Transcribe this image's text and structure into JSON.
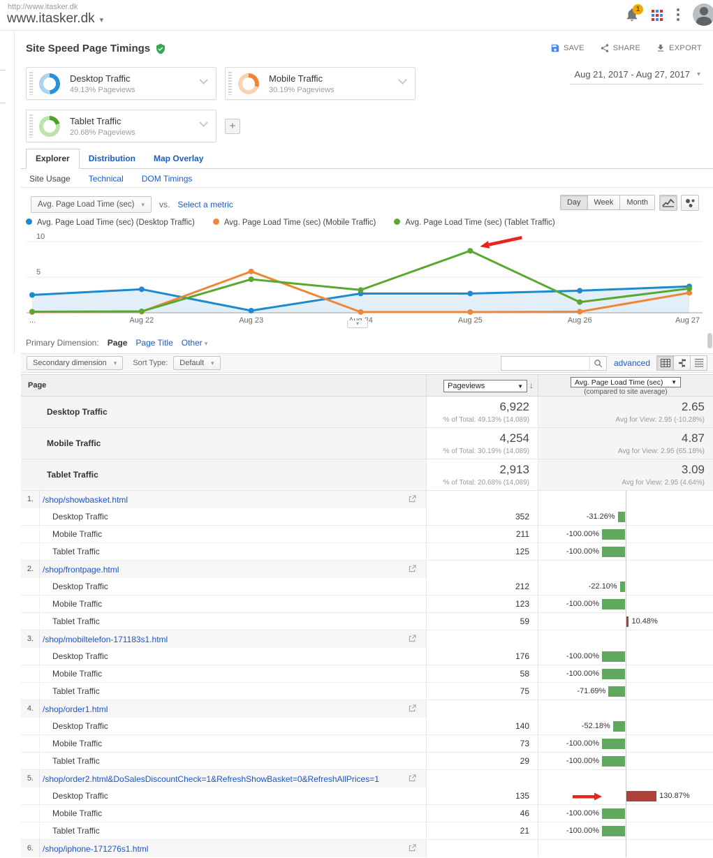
{
  "glyphs": {
    "caret_down": "▾",
    "select_caret": "▼",
    "sort_desc": "↓",
    "plus": "+",
    "expander": "▾"
  },
  "annotation_color": "#e8251d",
  "topbar": {
    "site_url": "http://www.itasker.dk",
    "account_name": "www.itasker.dk",
    "notification_count": "1"
  },
  "header": {
    "title": "Site Speed Page Timings",
    "actions": [
      {
        "label": "SAVE",
        "icon": "save-icon"
      },
      {
        "label": "SHARE",
        "icon": "share-icon"
      },
      {
        "label": "EXPORT",
        "icon": "export-icon"
      }
    ],
    "date_range": "Aug 21, 2017 - Aug 27, 2017"
  },
  "segments": [
    {
      "name": "Desktop Traffic",
      "detail": "49.13% Pageviews",
      "percent": 49.13,
      "color": "#2b8fd9",
      "tint": "#abd4ee"
    },
    {
      "name": "Mobile Traffic",
      "detail": "30.19% Pageviews",
      "percent": 30.19,
      "color": "#f08536",
      "tint": "#f8d3b4"
    },
    {
      "name": "Tablet Traffic",
      "detail": "20.68% Pageviews",
      "percent": 20.68,
      "color": "#4ca42c",
      "tint": "#bfe3ac"
    }
  ],
  "tabs": [
    {
      "label": "Explorer",
      "active": true
    },
    {
      "label": "Distribution",
      "active": false
    },
    {
      "label": "Map Overlay",
      "active": false
    }
  ],
  "subtabs": [
    {
      "label": "Site Usage",
      "active": true
    },
    {
      "label": "Technical",
      "active": false
    },
    {
      "label": "DOM Timings",
      "active": false
    }
  ],
  "metric_bar": {
    "metric_select": "Avg. Page Load Time (sec)",
    "vs_label": "vs.",
    "select_metric_label": "Select a metric"
  },
  "granularity": {
    "options": [
      "Day",
      "Week",
      "Month"
    ],
    "active": "Day"
  },
  "chart_data": {
    "type": "line",
    "x": [
      "...",
      "Aug 22",
      "Aug 23",
      "Aug 24",
      "Aug 25",
      "Aug 26",
      "Aug 27"
    ],
    "ylim": [
      0,
      10
    ],
    "yticks": [
      5,
      10
    ],
    "grid": true,
    "legend_position": "top",
    "series": [
      {
        "name": "Avg. Page Load Time (sec) (Desktop Traffic)",
        "color": "#1d8ad0",
        "area": true,
        "area_fill": "#d8eaf6",
        "values": [
          2.5,
          3.3,
          0.3,
          2.7,
          2.7,
          3.1,
          3.7
        ]
      },
      {
        "name": "Avg. Page Load Time (sec) (Mobile Traffic)",
        "color": "#f08536",
        "area": false,
        "values": [
          0.1,
          0.15,
          5.8,
          0.1,
          0.1,
          0.15,
          2.8
        ]
      },
      {
        "name": "Avg. Page Load Time (sec) (Tablet Traffic)",
        "color": "#59a82f",
        "area": false,
        "values": [
          0.15,
          0.2,
          4.7,
          3.2,
          8.7,
          1.5,
          3.4
        ]
      }
    ],
    "annotation": {
      "type": "red-arrow",
      "target_series": 2,
      "target_x": "Aug 25"
    }
  },
  "primary_dimension": {
    "label": "Primary Dimension:",
    "options": [
      {
        "label": "Page",
        "active": true
      },
      {
        "label": "Page Title",
        "active": false
      },
      {
        "label": "Other",
        "active": false,
        "has_caret": true
      }
    ]
  },
  "toolbar": {
    "secondary_dimension_label": "Secondary dimension",
    "sort_type_label": "Sort Type:",
    "sort_type_value": "Default",
    "search_value": "",
    "advanced_label": "advanced"
  },
  "table": {
    "columns": {
      "page": "Page",
      "pageviews": "Pageviews",
      "metric": "Avg. Page Load Time (sec)",
      "metric_note": "(compared to site average)"
    },
    "bar_colors": {
      "negative": "#60a860",
      "positive": "#b04138"
    },
    "summary_rows": [
      {
        "name": "Desktop Traffic",
        "pageviews": "6,922",
        "pageviews_note": "% of Total: 49.13% (14,089)",
        "metric": "2.65",
        "metric_note": "Avg for View: 2.95 (-10.28%)"
      },
      {
        "name": "Mobile Traffic",
        "pageviews": "4,254",
        "pageviews_note": "% of Total: 30.19% (14,089)",
        "metric": "4.87",
        "metric_note": "Avg for View: 2.95 (65.18%)"
      },
      {
        "name": "Tablet Traffic",
        "pageviews": "2,913",
        "pageviews_note": "% of Total: 20.68% (14,089)",
        "metric": "3.09",
        "metric_note": "Avg for View: 2.95 (4.64%)"
      }
    ],
    "page_rows": [
      {
        "num": "1.",
        "page": "/shop/showbasket.html",
        "breakdown": [
          {
            "name": "Desktop Traffic",
            "pageviews": "352",
            "delta_label": "-31.26%",
            "delta": -31.26
          },
          {
            "name": "Mobile Traffic",
            "pageviews": "211",
            "delta_label": "-100.00%",
            "delta": -100
          },
          {
            "name": "Tablet Traffic",
            "pageviews": "125",
            "delta_label": "-100.00%",
            "delta": -100
          }
        ]
      },
      {
        "num": "2.",
        "page": "/shop/frontpage.html",
        "breakdown": [
          {
            "name": "Desktop Traffic",
            "pageviews": "212",
            "delta_label": "-22.10%",
            "delta": -22.1
          },
          {
            "name": "Mobile Traffic",
            "pageviews": "123",
            "delta_label": "-100.00%",
            "delta": -100
          },
          {
            "name": "Tablet Traffic",
            "pageviews": "59",
            "delta_label": "10.48%",
            "delta": 10.48
          }
        ]
      },
      {
        "num": "3.",
        "page": "/shop/mobiltelefon-171183s1.html",
        "breakdown": [
          {
            "name": "Desktop Traffic",
            "pageviews": "176",
            "delta_label": "-100.00%",
            "delta": -100
          },
          {
            "name": "Mobile Traffic",
            "pageviews": "58",
            "delta_label": "-100.00%",
            "delta": -100
          },
          {
            "name": "Tablet Traffic",
            "pageviews": "75",
            "delta_label": "-71.69%",
            "delta": -71.69
          }
        ]
      },
      {
        "num": "4.",
        "page": "/shop/order1.html",
        "breakdown": [
          {
            "name": "Desktop Traffic",
            "pageviews": "140",
            "delta_label": "-52.18%",
            "delta": -52.18
          },
          {
            "name": "Mobile Traffic",
            "pageviews": "73",
            "delta_label": "-100.00%",
            "delta": -100
          },
          {
            "name": "Tablet Traffic",
            "pageviews": "29",
            "delta_label": "-100.00%",
            "delta": -100
          }
        ]
      },
      {
        "num": "5.",
        "page": "/shop/order2.html&DoSalesDiscountCheck=1&RefreshShowBasket=0&RefreshAllPrices=1",
        "breakdown": [
          {
            "name": "Desktop Traffic",
            "pageviews": "135",
            "delta_label": "130.87%",
            "delta": 130.87,
            "annotation_arrow": true
          },
          {
            "name": "Mobile Traffic",
            "pageviews": "46",
            "delta_label": "-100.00%",
            "delta": -100
          },
          {
            "name": "Tablet Traffic",
            "pageviews": "21",
            "delta_label": "-100.00%",
            "delta": -100
          }
        ]
      },
      {
        "num": "6.",
        "page": "/shop/iphone-171276s1.html",
        "breakdown": []
      }
    ]
  }
}
